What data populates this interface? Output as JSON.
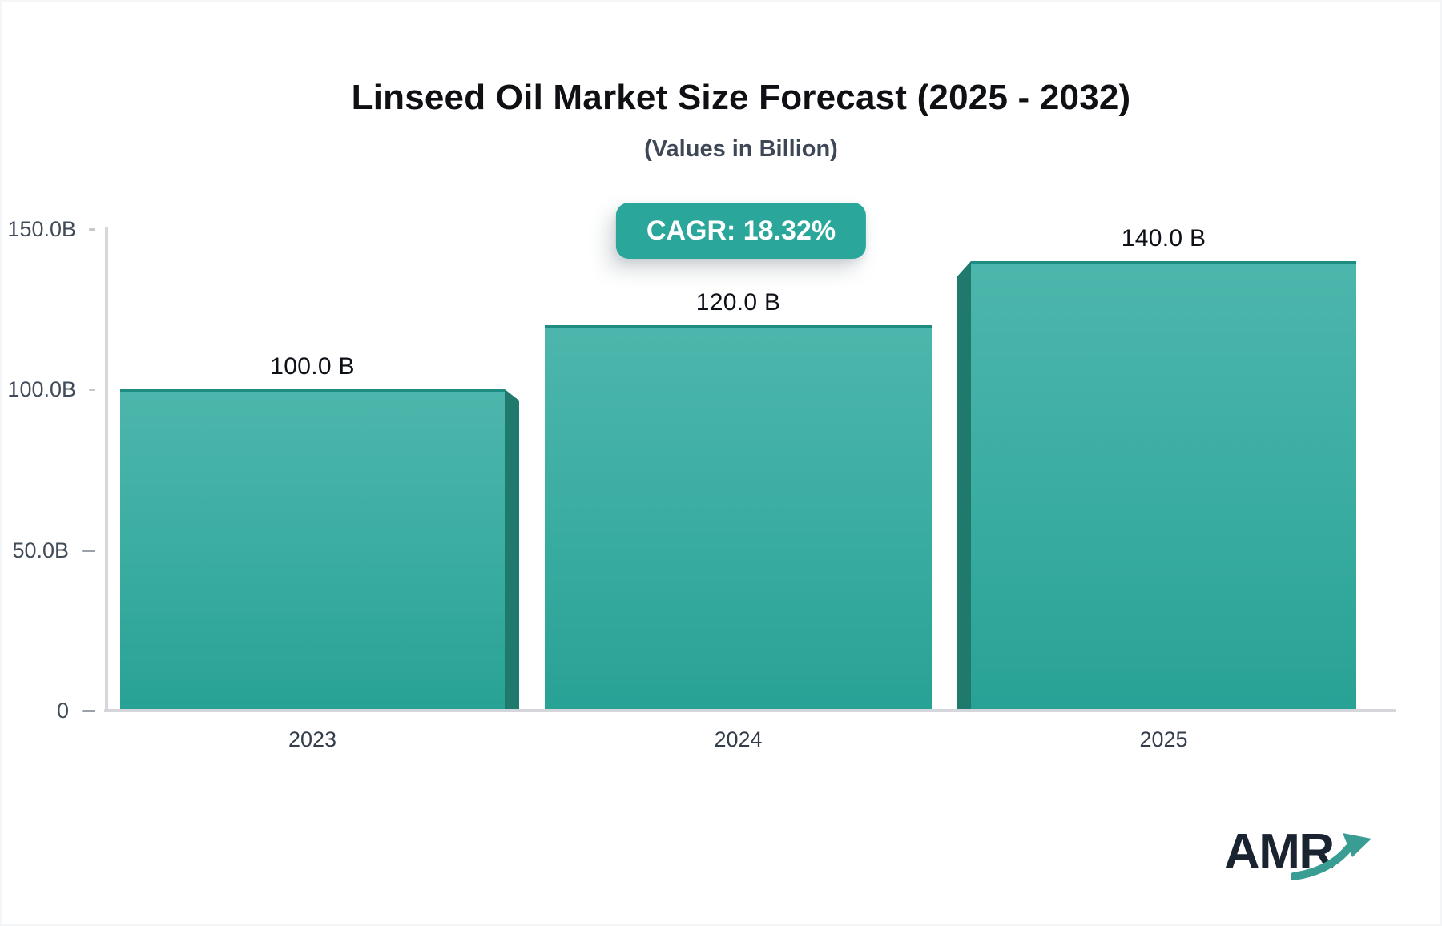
{
  "chart_data": {
    "type": "bar",
    "title": "Linseed Oil Market Size Forecast (2025 - 2032)",
    "subtitle": "(Values in Billion)",
    "cagr_badge": "CAGR: 18.32%",
    "categories": [
      "2023",
      "2024",
      "2025"
    ],
    "values": [
      100,
      120,
      140
    ],
    "value_labels": [
      "100.0 B",
      "120.0 B",
      "140.0 B"
    ],
    "unit": "B",
    "ylim": [
      0,
      150
    ],
    "y_ticks": [
      {
        "value": 150,
        "label": "150.0B"
      },
      {
        "value": 100,
        "label": "100.0B"
      },
      {
        "value": 50,
        "label": "50.0B"
      },
      {
        "value": 0,
        "label": "0"
      }
    ],
    "grid": false,
    "legend": null
  },
  "colors": {
    "bar_gradient_top": "#4db6ac",
    "bar_gradient_bottom": "#28a295",
    "bar_top_stroke": "#1d8d81",
    "bar_side_panel": "#1f7a6d",
    "badge_background": "#2aa69a",
    "badge_text": "#ffffff",
    "axis_line": "#d5d7dd",
    "title_text": "#0e1013",
    "subtitle_text": "#3d4756",
    "logo_text": "#1a2430",
    "logo_arrow": "#3a9d93"
  },
  "branding": {
    "logo_text": "AMR",
    "logo_icon": "trending-up-arrow-icon"
  }
}
